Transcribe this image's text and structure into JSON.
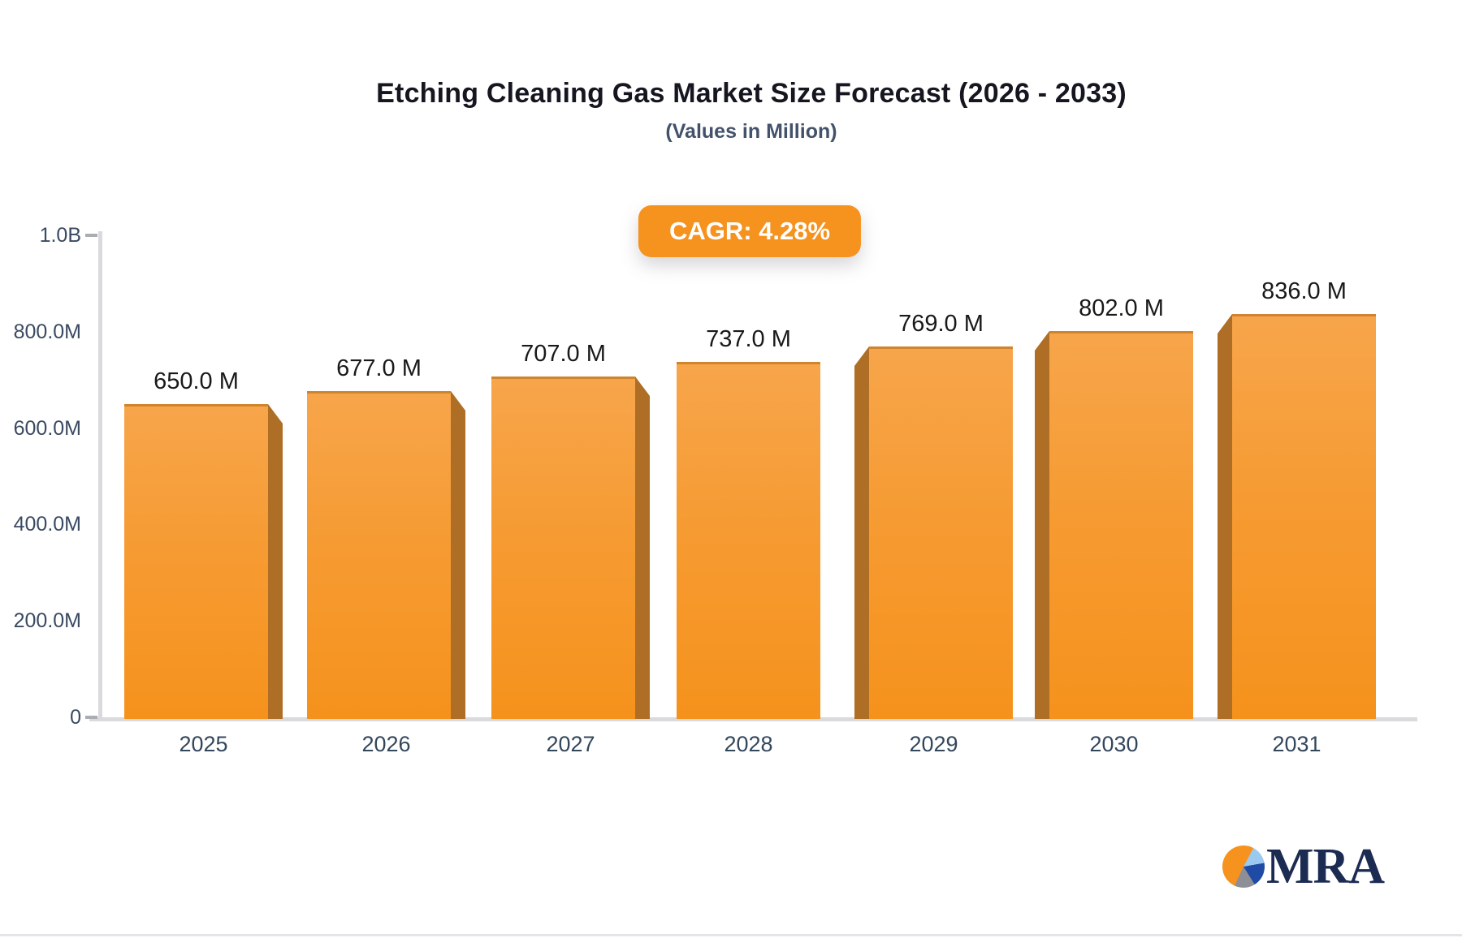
{
  "header": {
    "title": "Etching Cleaning Gas Market Size Forecast (2026 - 2033)",
    "subtitle": "(Values in Million)",
    "cagr_badge": "CAGR: 4.28%"
  },
  "chart_data": {
    "type": "bar",
    "title": "Etching Cleaning Gas Market Size Forecast (2026 - 2033)",
    "subtitle": "(Values in Million)",
    "annotation": "CAGR: 4.28%",
    "categories": [
      "2025",
      "2026",
      "2027",
      "2028",
      "2029",
      "2030",
      "2031"
    ],
    "values": [
      650,
      677,
      707,
      737,
      769,
      802,
      836
    ],
    "value_labels": [
      "650.0 M",
      "677.0 M",
      "707.0 M",
      "737.0 M",
      "769.0 M",
      "802.0 M",
      "836.0 M"
    ],
    "xlabel": "",
    "ylabel": "",
    "ylim": [
      0,
      1000
    ],
    "grid": false,
    "legend": "none",
    "y_ticks": [
      {
        "label": "1.0B",
        "value": 1000,
        "dash": true
      },
      {
        "label": "800.0M",
        "value": 800,
        "dash": false
      },
      {
        "label": "600.0M",
        "value": 600,
        "dash": false
      },
      {
        "label": "400.0M",
        "value": 400,
        "dash": false
      },
      {
        "label": "200.0M",
        "value": 200,
        "dash": false
      },
      {
        "label": "0",
        "value": 0,
        "dash": true
      }
    ]
  },
  "colors": {
    "accent_orange": "#f6921e",
    "bar_face_top": "#f7a54b",
    "bar_face_bottom": "#f5921c",
    "bar_side_dark": "#af6e25",
    "axis_gray": "#d9dade",
    "tick_text": "#3a4a61",
    "value_text": "#191919",
    "title_text": "#15161f",
    "subtitle_text": "#43526b",
    "logo_navy": "#1b2b52"
  },
  "logo": {
    "text": "MRA",
    "icon": "pie-chart-icon"
  }
}
